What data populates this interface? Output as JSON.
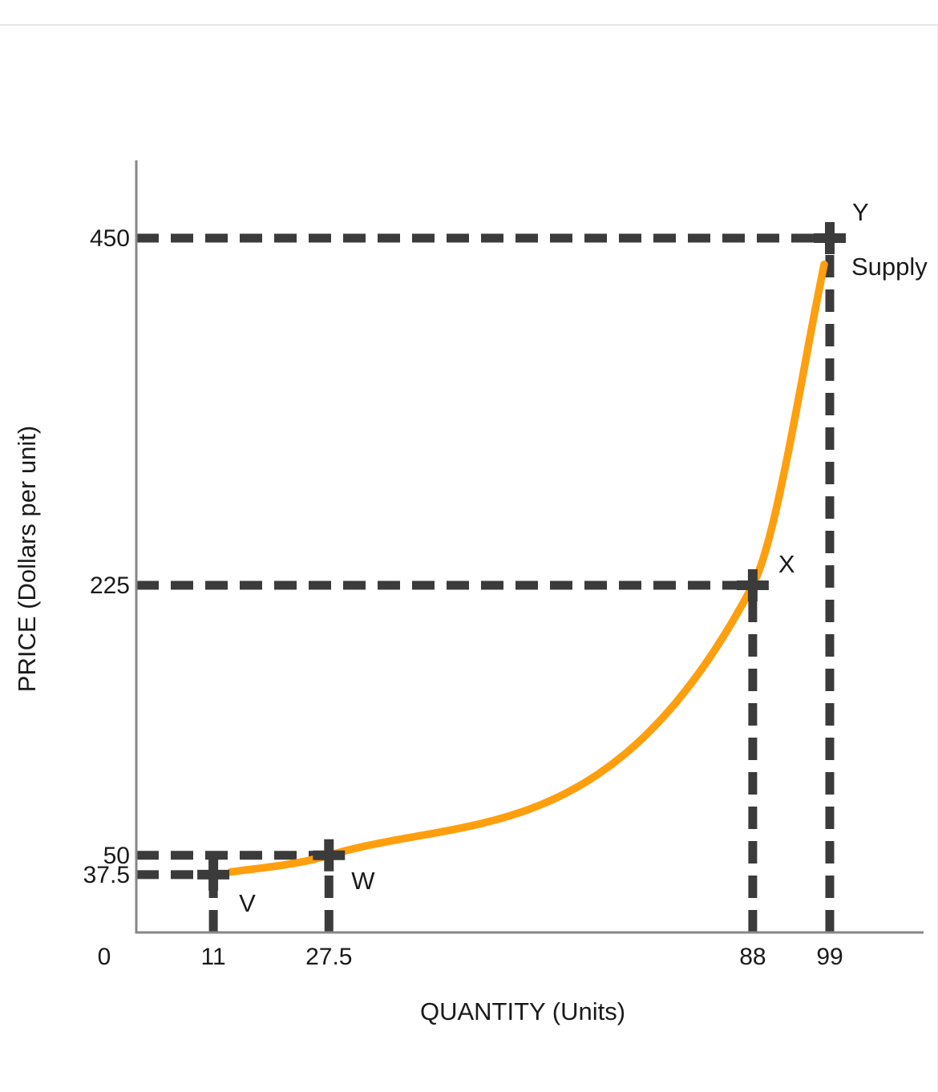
{
  "chart_data": {
    "type": "line",
    "title": "",
    "xlabel": "QUANTITY (Units)",
    "ylabel": "PRICE (Dollars per unit)",
    "origin_label": "0",
    "xlim": [
      0,
      112
    ],
    "ylim": [
      0,
      500
    ],
    "grid": false,
    "legend_position": "none",
    "x_ticks": [
      {
        "value": 11,
        "label": "11"
      },
      {
        "value": 27.5,
        "label": "27.5"
      },
      {
        "value": 88,
        "label": "88"
      },
      {
        "value": 99,
        "label": "99"
      }
    ],
    "y_ticks": [
      {
        "value": 450,
        "label": "450"
      },
      {
        "value": 225,
        "label": "225"
      },
      {
        "value": 50,
        "label": "50"
      },
      {
        "value": 37.5,
        "label": "37.5"
      }
    ],
    "series": [
      {
        "name": "Supply",
        "color": "#ff9f0e",
        "points": [
          {
            "q": 11,
            "p": 37.5
          },
          {
            "q": 27.5,
            "p": 50
          },
          {
            "q": 88,
            "p": 225
          },
          {
            "q": 99,
            "p": 450
          }
        ],
        "visible_q_range": [
          13.5,
          98.2
        ]
      }
    ],
    "marked_points": [
      {
        "label": "V",
        "q": 11,
        "p": 37.5
      },
      {
        "label": "W",
        "q": 27.5,
        "p": 50
      },
      {
        "label": "X",
        "q": 88,
        "p": 225
      },
      {
        "label": "Y",
        "q": 99,
        "p": 450
      }
    ],
    "series_label": "Supply",
    "style": {
      "dash_color": "#3b3b3b",
      "axis_color": "#878787",
      "text_color": "#1a1a1a",
      "curve_color": "#ff9f0e"
    }
  }
}
